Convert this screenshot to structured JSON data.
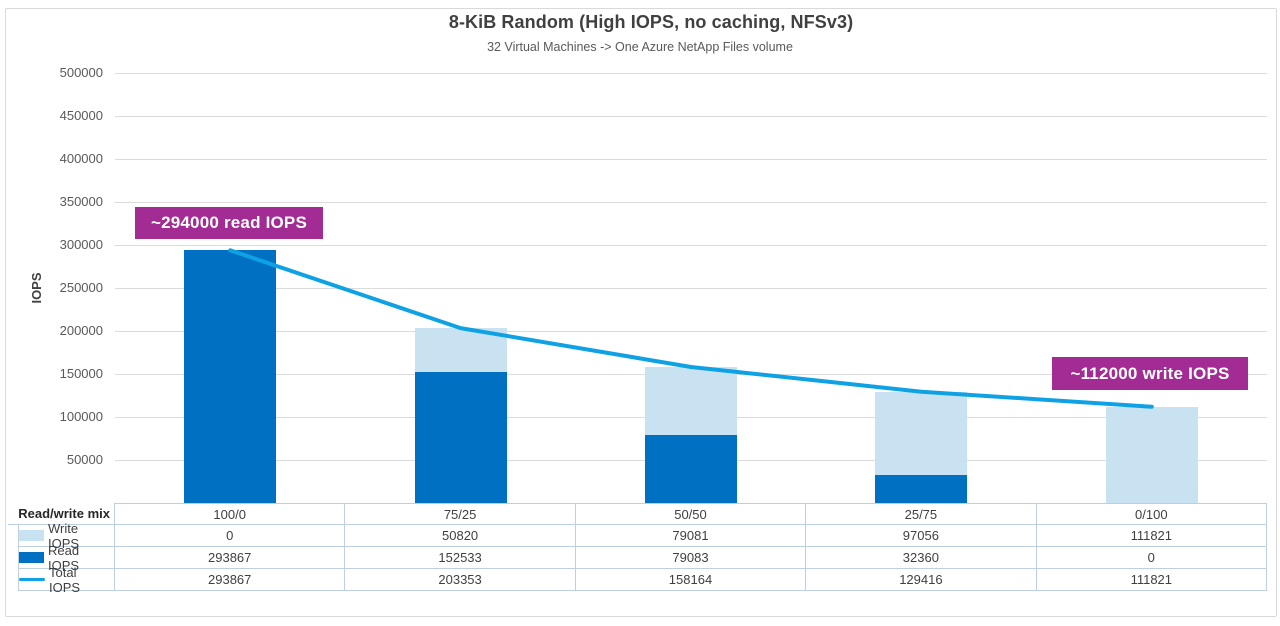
{
  "title": "8-KiB Random (High IOPS, no caching, NFSv3)",
  "subtitle": "32 Virtual Machines -> One Azure NetApp Files volume",
  "annotations": [
    {
      "id": "read-callout",
      "text": "~294000 read IOPS"
    },
    {
      "id": "write-callout",
      "text": "~112000 write IOPS"
    }
  ],
  "chart_data": {
    "type": "bar",
    "subtype": "stacked-column-with-line-overlay",
    "title": "8-KiB Random (High IOPS, no caching, NFSv3)",
    "subtitle": "32 Virtual Machines -> One Azure NetApp Files volume",
    "categories": [
      "100/0",
      "75/25",
      "50/50",
      "25/75",
      "0/100"
    ],
    "category_axis_label": "Read/write mix",
    "series": [
      {
        "name": "Write IOPS",
        "type": "bar",
        "stack": "top",
        "color": "#C8E2F2",
        "values": [
          0,
          50820,
          79081,
          97056,
          111821
        ]
      },
      {
        "name": "Read IOPS",
        "type": "bar",
        "stack": "bottom",
        "color": "#0070C2",
        "values": [
          293867,
          152533,
          79083,
          32360,
          0
        ]
      },
      {
        "name": "Total IOPS",
        "type": "line",
        "color": "#0EA2E4",
        "values": [
          293867,
          203353,
          158164,
          129416,
          111821
        ]
      }
    ],
    "ylabel": "IOPS",
    "ylim": [
      0,
      500000
    ],
    "ytick_step": 50000,
    "yticks": [
      50000,
      100000,
      150000,
      200000,
      250000,
      300000,
      350000,
      400000,
      450000,
      500000
    ],
    "grid": "horizontal",
    "legend_position": "data-table-left-column"
  },
  "table": {
    "row_header": "Read/write mix"
  },
  "colors": {
    "grid": "#DBDBDB",
    "outer_border": "#D9D9D9",
    "table_border": "#BDCFE0",
    "title_text": "#404040",
    "axis_text": "#595959",
    "annotation_bg": "#A22C94",
    "annotation_text": "#FFFFFF",
    "write_bar": "#C8E2F2",
    "read_bar": "#0070C2",
    "total_line": "#0EA2E4"
  }
}
